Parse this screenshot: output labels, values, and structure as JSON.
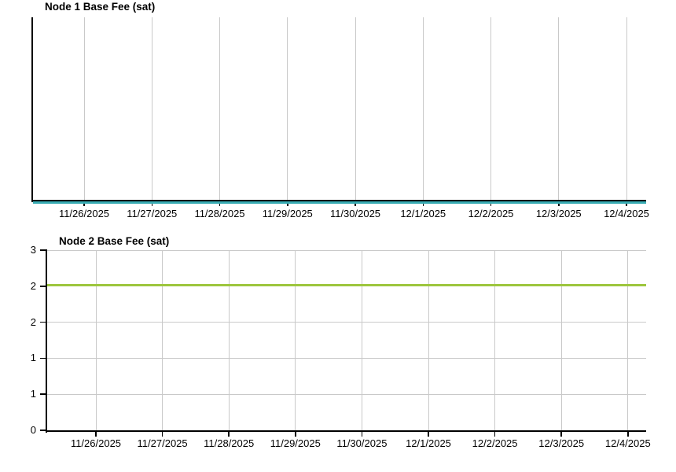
{
  "page": {
    "background": "#ffffff"
  },
  "colors": {
    "node1_line": "#3aacb4",
    "node2_line": "#9dc63e",
    "gridline": "#c9c9c9",
    "axis": "#000000",
    "text": "#000000"
  },
  "charts": [
    {
      "title": "Node 1 Base Fee (sat)",
      "x_labels": [
        "11/26/2025",
        "11/27/2025",
        "11/28/2025",
        "11/29/2025",
        "11/30/2025",
        "12/1/2025",
        "12/2/2025",
        "12/3/2025",
        "12/4/2025"
      ],
      "y_tick_labels": [],
      "line_color": "#3aacb4"
    },
    {
      "title": "Node 2 Base Fee (sat)",
      "x_labels": [
        "11/26/2025",
        "11/27/2025",
        "11/28/2025",
        "11/29/2025",
        "11/30/2025",
        "12/1/2025",
        "12/2/2025",
        "12/3/2025",
        "12/4/2025"
      ],
      "y_tick_labels": [
        "3",
        "2",
        "2",
        "1",
        "1",
        "0"
      ],
      "line_color": "#9dc63e"
    }
  ],
  "chart_data": [
    {
      "type": "line",
      "title": "Node 1 Base Fee (sat)",
      "x": [
        "11/26/2025",
        "11/27/2025",
        "11/28/2025",
        "11/29/2025",
        "11/30/2025",
        "12/1/2025",
        "12/2/2025",
        "12/3/2025",
        "12/4/2025"
      ],
      "series": [
        {
          "name": "Node 1 Base Fee (sat)",
          "values": [
            0,
            0,
            0,
            0,
            0,
            0,
            0,
            0,
            0
          ]
        }
      ],
      "xlabel": "",
      "ylabel": "",
      "y_tick_labels": [],
      "grid": "vertical-only",
      "legend": "none",
      "line_color": "#3aacb4",
      "note": "constant 0 - flat line drawn along the x-axis baseline"
    },
    {
      "type": "line",
      "title": "Node 2 Base Fee (sat)",
      "x": [
        "11/26/2025",
        "11/27/2025",
        "11/28/2025",
        "11/29/2025",
        "11/30/2025",
        "12/1/2025",
        "12/2/2025",
        "12/3/2025",
        "12/4/2025"
      ],
      "series": [
        {
          "name": "Node 2 Base Fee (sat)",
          "values": [
            2,
            2,
            2,
            2,
            2,
            2,
            2,
            2,
            2
          ]
        }
      ],
      "xlabel": "",
      "ylabel": "",
      "ylim": [
        0,
        2.5
      ],
      "y_ticks": [
        0,
        0.5,
        1,
        1.5,
        2,
        2.5
      ],
      "y_tick_labels_displayed_bottom_to_top": [
        "0",
        "1",
        "1",
        "2",
        "2",
        "3"
      ],
      "grid": "both",
      "legend": "none",
      "line_color": "#9dc63e",
      "note": "constant 2 - flat line at the tick labeled 2 (second from top)"
    }
  ]
}
